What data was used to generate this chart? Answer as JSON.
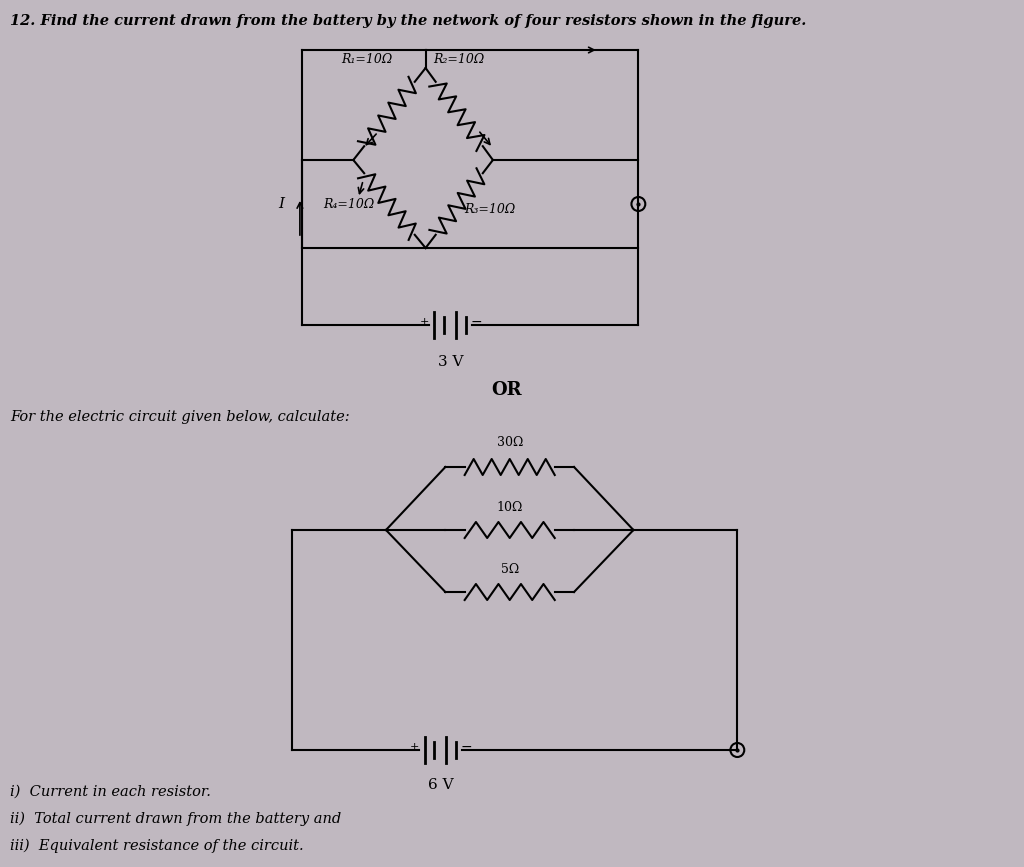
{
  "bg_color": "#c0b8c0",
  "title_text": "12. Find the current drawn from the battery by the network of four resistors shown in the figure.",
  "title_fontsize": 10.5,
  "or_text": "OR",
  "or_fontsize": 13,
  "subtitle_text": "For the electric circuit given below, calculate:",
  "subtitle_fontsize": 10.5,
  "bullet1": "i)  Current in each resistor.",
  "bullet2": "ii)  Total current drawn from the battery and",
  "bullet3": "iii)  Equivalent resistance of the circuit.",
  "bullet_fontsize": 10.5,
  "circuit1": {
    "R1_label": "R₁=10Ω",
    "R2_label": "R₂=10Ω",
    "R3_label": "R₃=10Ω",
    "R4_label": "R₄=10Ω",
    "battery_label": "3 V",
    "current_label": "I"
  },
  "circuit2": {
    "R1_label": "30Ω",
    "R2_label": "10Ω",
    "R3_label": "5Ω",
    "battery_label": "6 V"
  }
}
